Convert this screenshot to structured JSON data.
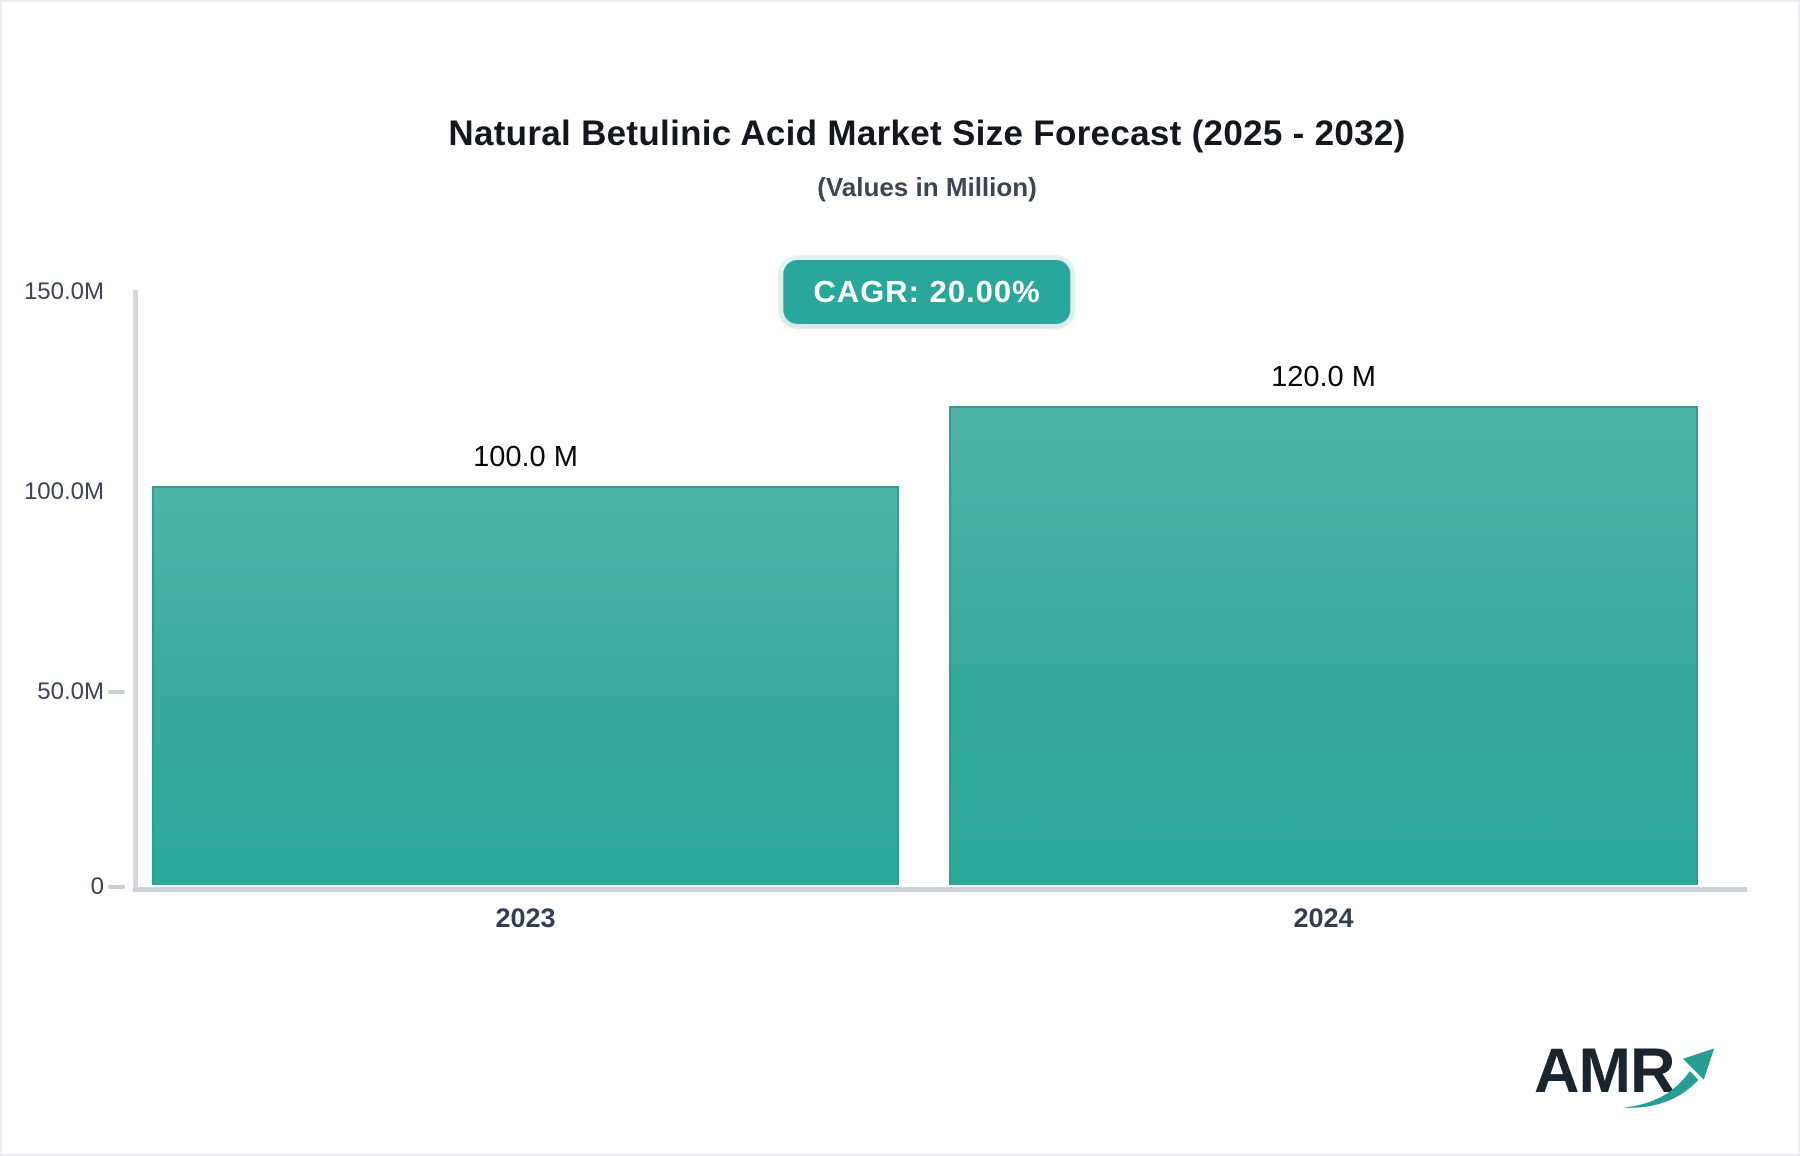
{
  "page": {
    "title": "Natural Betulinic Acid Market Size Forecast (2025 - 2032)",
    "subtitle": "(Values in Million)",
    "cagr_badge": "CAGR: 20.00%"
  },
  "chart_data": {
    "type": "bar",
    "title": "Natural Betulinic Acid Market Size Forecast (2025 - 2032)",
    "subtitle": "(Values in Million)",
    "categories": [
      "2023",
      "2024"
    ],
    "values": [
      100.0,
      120.0
    ],
    "value_labels": [
      "100.0 M",
      "120.0 M"
    ],
    "unit": "M",
    "ylim": [
      0,
      150
    ],
    "y_ticks": [
      {
        "label": "150.0M",
        "value": 150
      },
      {
        "label": "100.0M",
        "value": 100
      },
      {
        "label": "50.0M",
        "value": 50
      },
      {
        "label": "0",
        "value": 0
      }
    ],
    "grid": "off",
    "legend": "none",
    "cagr_percent": "20.00%",
    "colors": {
      "bar_top": "#4eb5a8",
      "bar_bottom": "#2ba99b",
      "bar_border": "#2f9e91",
      "badge_background": "#2aa79b",
      "axis_line": "#ced3da",
      "title_text": "#15171e",
      "tick_text": "#3c4454"
    }
  },
  "branding": {
    "logo_text": "AMR",
    "logo_arrow_color": "#2a9d92"
  }
}
